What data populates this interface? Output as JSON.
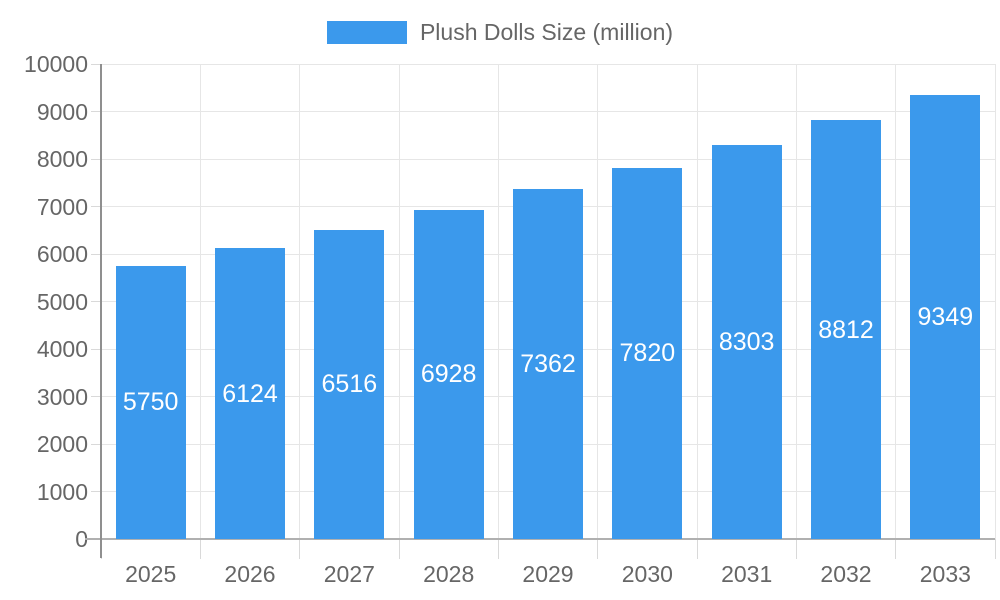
{
  "legend": {
    "label": "Plush Dolls Size (million)"
  },
  "chart_data": {
    "type": "bar",
    "title": "Plush Dolls Size (million)",
    "categories": [
      "2025",
      "2026",
      "2027",
      "2028",
      "2029",
      "2030",
      "2031",
      "2032",
      "2033"
    ],
    "values": [
      5750,
      6124,
      6516,
      6928,
      7362,
      7820,
      8303,
      8812,
      9349
    ],
    "series_name": "Plush Dolls Size (million)",
    "xlabel": "",
    "ylabel": "",
    "ylim": [
      0,
      10000
    ],
    "yticks": [
      0,
      1000,
      2000,
      3000,
      4000,
      5000,
      6000,
      7000,
      8000,
      9000,
      10000
    ],
    "grid": true,
    "legend_position": "top-center",
    "value_labels": "inside-center",
    "colors": {
      "bar": "#3b99ec",
      "grid": "#e6e6e6",
      "axis_line": "#8f8f8f",
      "baseline": "#b0b0b0",
      "tick": "#d9d9d9",
      "axis_label": "#666666",
      "value_label": "#ffffff"
    }
  }
}
